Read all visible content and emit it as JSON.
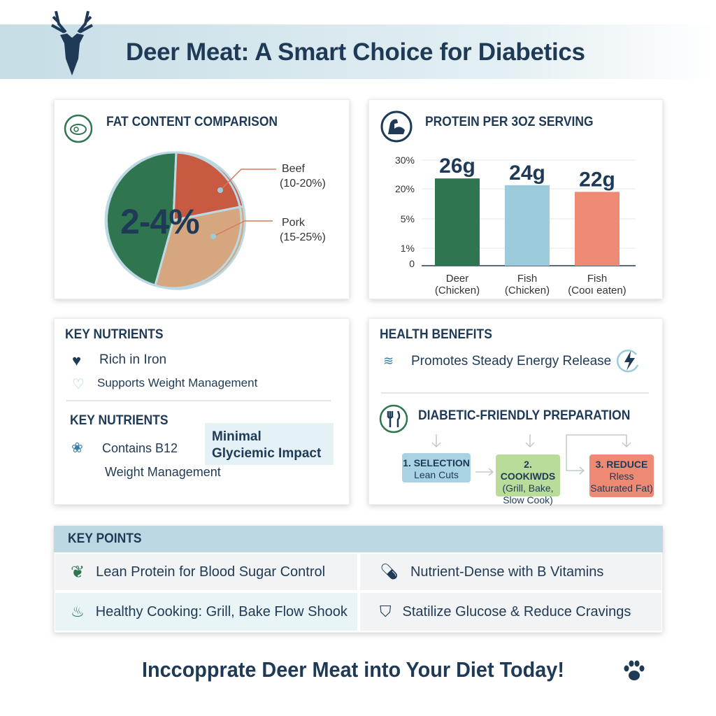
{
  "header": {
    "title": "Deer Meat: A Smart Choice for Diabetics",
    "logo_icon": "deer-head-icon"
  },
  "fat": {
    "title": "FAT CONTENT COMPARISON",
    "icon": "steak-icon",
    "center_label": "2-4%",
    "beef_label": "Beef",
    "beef_range": "(10-20%)",
    "pork_label": "Pork",
    "pork_range": "(15-25%)",
    "colors": {
      "deer": "#2f7550",
      "beef": "#c85a42",
      "pork": "#d6a77f"
    }
  },
  "protein": {
    "title": "PROTEIN PER 3OZ SERVING",
    "icon": "flexed-arm-icon"
  },
  "chart_data": {
    "type": "bar",
    "title": "PROTEIN PER 3OZ SERVING",
    "y_ticks": [
      "30%",
      "20%",
      "5%",
      "1%",
      "0"
    ],
    "categories": [
      [
        "Deer",
        "(Chicken)"
      ],
      [
        "Fish",
        "(Chicken)"
      ],
      [
        "Fish",
        "(Cooı eaten)"
      ]
    ],
    "values": [
      26,
      24,
      22
    ],
    "value_labels": [
      "26g",
      "24g",
      "22g"
    ],
    "colors": [
      "#2f7550",
      "#9ccbdc",
      "#ee8a74"
    ],
    "grid": true
  },
  "nutrients": {
    "title": "KEY NUTRIENTS",
    "items": [
      "Rich in Iron",
      "Supports Weight Management"
    ],
    "title2": "KEY NUTRIENTS",
    "item3": "Contains B12",
    "item4": "Weight Management",
    "callout": "Minimal Glyciemic Impact",
    "callout_l1": "Minimal",
    "callout_l2": "Glyciemic Impact"
  },
  "benefits": {
    "title": "HEALTH BENEFITS",
    "item": "Promotes Steady Energy Release",
    "prep_title": "DIABETIC-FRIENDLY PREPARATION",
    "steps": [
      {
        "title": "1. SELECTION",
        "l1": "Lean Cuts",
        "l2": ""
      },
      {
        "title": "2. COOKIWDS",
        "l1": "(Grill, Bake,",
        "l2": "Slow Cook)"
      },
      {
        "title": "3. REDUCE",
        "l1": "Rless",
        "l2": "Saturated Fat)"
      }
    ]
  },
  "key_points": {
    "title": "KEY POINTS",
    "items": [
      "Lean Protein for Blood Sugar Control",
      "Nutrient-Dense with B Vitamins",
      "Healthy Cooking: Grill, Bake Flow Shook",
      "Statilize Glucose & Reduce Cravings"
    ]
  },
  "footer": {
    "cta": "Inccopprate Deer Meat into Your Diet Today!",
    "icon": "paw-print-icon"
  }
}
